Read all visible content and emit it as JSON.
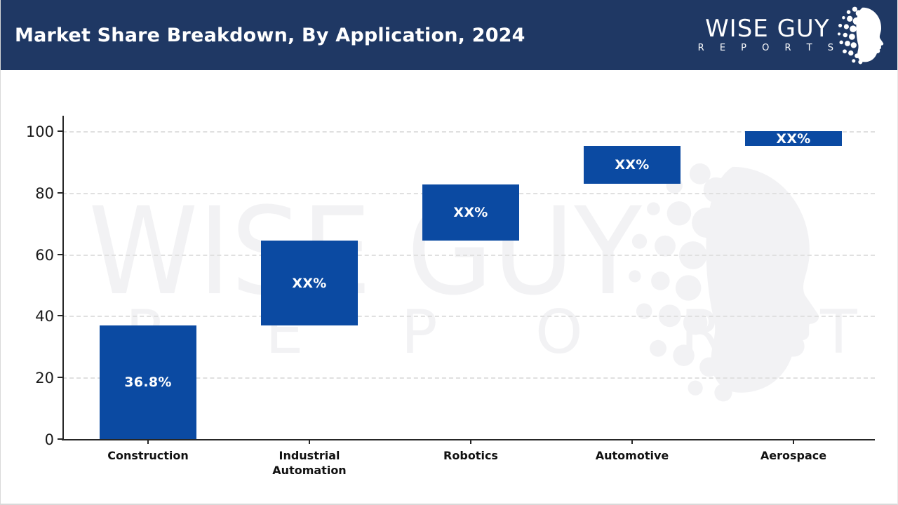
{
  "header": {
    "title": "Market Share Breakdown, By Application, 2024",
    "bg_color": "#1f3864",
    "logo": {
      "line1": "WISE GUY",
      "line2": "R E P O R T S",
      "face_icon": "head-profile-dots-icon"
    }
  },
  "watermark": {
    "line1": "WISE GUY",
    "line2": "R E P O R T S",
    "color": "#f2f2f4"
  },
  "chart_data": {
    "type": "waterfall_bar",
    "title": "Market Share Breakdown, By Application, 2024",
    "categories": [
      "Construction",
      "Industrial Automation",
      "Robotics",
      "Automotive",
      "Aerospace"
    ],
    "segments": [
      {
        "category": "Construction",
        "start": 0,
        "end": 36.8,
        "label": "36.8%"
      },
      {
        "category": "Industrial Automation",
        "start": 36.8,
        "end": 64.5,
        "label": "XX%"
      },
      {
        "category": "Robotics",
        "start": 64.5,
        "end": 82.8,
        "label": "XX%"
      },
      {
        "category": "Automotive",
        "start": 82.8,
        "end": 95.2,
        "label": "XX%"
      },
      {
        "category": "Aerospace",
        "start": 95.2,
        "end": 100,
        "label": "XX%"
      }
    ],
    "yticks": [
      0,
      20,
      40,
      60,
      80,
      100
    ],
    "ylim": [
      0,
      105
    ],
    "xlabel": "",
    "ylabel": "",
    "grid": "horizontal-dashed",
    "legend": "none",
    "bar_color": "#0b4aa2",
    "bar_label_color": "#ffffff",
    "axis_color": "#262626",
    "gridline_color": "#e0e0e0"
  }
}
